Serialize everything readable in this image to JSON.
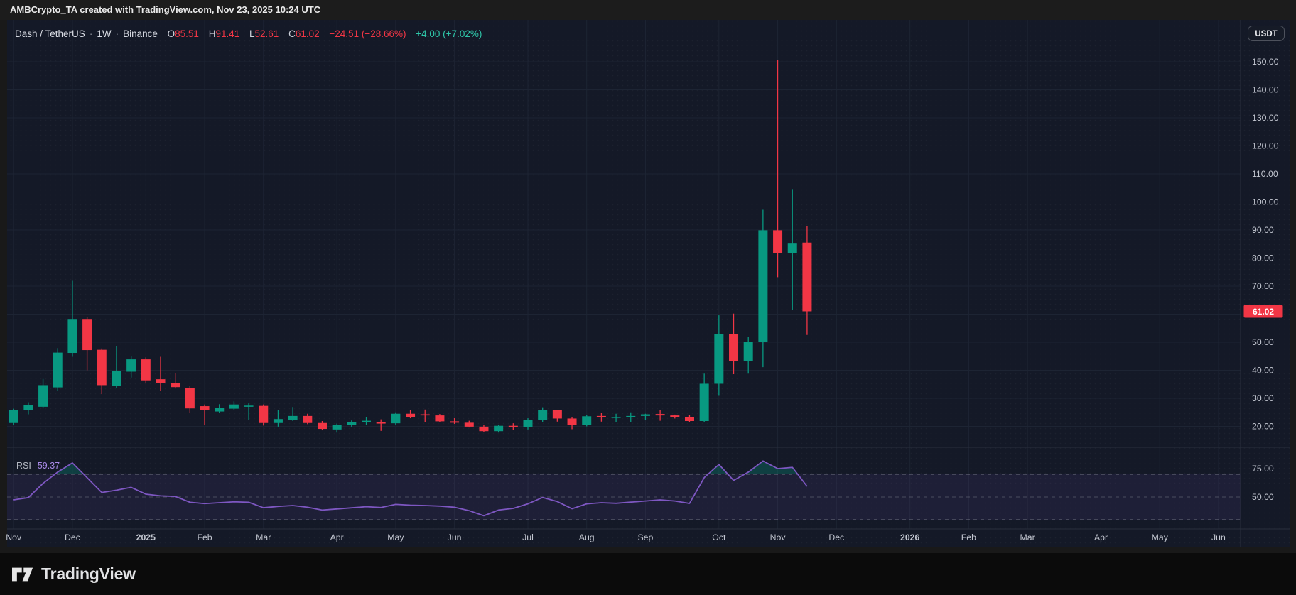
{
  "top_bar": {
    "text": "AMBCrypto_TA created with TradingView.com, Nov 23, 2025 10:24 UTC"
  },
  "legend": {
    "symbol": "Dash / TetherUS",
    "separator": "·",
    "interval": "1W",
    "exchange": "Binance",
    "o_label": "O",
    "o_value": "85.51",
    "h_label": "H",
    "h_value": "91.41",
    "l_label": "L",
    "l_value": "52.61",
    "c_label": "C",
    "c_value": "61.02",
    "change": "−24.51 (−28.66%)",
    "change_secondary": "+4.00 (+7.02%)"
  },
  "axis_button": {
    "label": "USDT"
  },
  "rsi_panel": {
    "label": "RSI",
    "value": "59.37"
  },
  "footer": {
    "brand": "TradingView"
  },
  "colors": {
    "up": "#089981",
    "down": "#f23645",
    "rsi_line": "#7e57c2",
    "rsi_band_fill": "rgba(126,87,194,0.10)",
    "rsi_overbought_fill": "rgba(8,153,129,0.30)",
    "chart_bg": "#141927",
    "grid": "#1d2433",
    "separator": "#2a2f3d",
    "axis_text": "#c3c7d1",
    "dashed_band": "rgba(190,193,200,0.50)",
    "dashed_mid": "rgba(190,193,200,0.28)",
    "badge_bg": "#f23645",
    "badge_text": "#ffffff"
  },
  "chart_data": {
    "type": "candlestick+rsi",
    "title": "Dash / TetherUS · 1W · Binance",
    "interval": "weekly",
    "last_price": 61.02,
    "price_axis": {
      "tick_labels": [
        {
          "label": "150.00",
          "value": 150
        },
        {
          "label": "140.00",
          "value": 140
        },
        {
          "label": "130.00",
          "value": 130
        },
        {
          "label": "120.00",
          "value": 120
        },
        {
          "label": "110.00",
          "value": 110
        },
        {
          "label": "100.00",
          "value": 100
        },
        {
          "label": "90.00",
          "value": 90
        },
        {
          "label": "80.00",
          "value": 80
        },
        {
          "label": "70.00",
          "value": 70
        },
        {
          "label": "50.00",
          "value": 50
        },
        {
          "label": "40.00",
          "value": 40
        },
        {
          "label": "30.00",
          "value": 30
        },
        {
          "label": "20.00",
          "value": 20
        }
      ],
      "grid_values": [
        20,
        30,
        40,
        50,
        60,
        70,
        80,
        90,
        100,
        110,
        120,
        130,
        140,
        150
      ],
      "ylim": [
        13,
        165
      ],
      "price_badge": {
        "label": "61.02",
        "value": 61.02
      }
    },
    "time_axis": {
      "ticks": [
        {
          "label": "Nov",
          "week": 0,
          "bold": false
        },
        {
          "label": "Dec",
          "week": 4,
          "bold": false
        },
        {
          "label": "2025",
          "week": 9,
          "bold": true
        },
        {
          "label": "Feb",
          "week": 13,
          "bold": false
        },
        {
          "label": "Mar",
          "week": 17,
          "bold": false
        },
        {
          "label": "Apr",
          "week": 22,
          "bold": false
        },
        {
          "label": "May",
          "week": 26,
          "bold": false
        },
        {
          "label": "Jun",
          "week": 30,
          "bold": false
        },
        {
          "label": "Jul",
          "week": 35,
          "bold": false
        },
        {
          "label": "Aug",
          "week": 39,
          "bold": false
        },
        {
          "label": "Sep",
          "week": 43,
          "bold": false
        },
        {
          "label": "Oct",
          "week": 48,
          "bold": false
        },
        {
          "label": "Nov",
          "week": 52,
          "bold": false
        },
        {
          "label": "Dec",
          "week": 56,
          "bold": false
        },
        {
          "label": "2026",
          "week": 61,
          "bold": true
        },
        {
          "label": "Feb",
          "week": 65,
          "bold": false
        },
        {
          "label": "Mar",
          "week": 69,
          "bold": false
        },
        {
          "label": "Apr",
          "week": 74,
          "bold": false
        },
        {
          "label": "May",
          "week": 78,
          "bold": false
        },
        {
          "label": "Jun",
          "week": 82,
          "bold": false
        }
      ]
    },
    "candles_ohlc": [
      [
        21.2,
        26.3,
        20.4,
        25.7
      ],
      [
        25.7,
        28.6,
        24.3,
        27.6
      ],
      [
        27.0,
        36.9,
        26.4,
        34.7
      ],
      [
        33.9,
        47.9,
        32.6,
        46.3
      ],
      [
        46.2,
        71.9,
        44.8,
        58.3
      ],
      [
        58.3,
        59.0,
        40.0,
        47.2
      ],
      [
        47.3,
        47.8,
        31.5,
        34.7
      ],
      [
        34.5,
        48.5,
        33.8,
        39.7
      ],
      [
        39.5,
        44.9,
        37.4,
        43.9
      ],
      [
        43.9,
        44.6,
        35.4,
        36.4
      ],
      [
        36.8,
        44.8,
        32.7,
        35.5
      ],
      [
        35.4,
        39.1,
        33.5,
        34.0
      ],
      [
        33.6,
        34.5,
        24.7,
        26.4
      ],
      [
        27.2,
        27.8,
        20.6,
        25.8
      ],
      [
        25.3,
        27.9,
        24.8,
        26.7
      ],
      [
        26.3,
        28.9,
        25.9,
        27.8
      ],
      [
        27.1,
        28.2,
        22.3,
        27.4
      ],
      [
        27.3,
        27.8,
        20.3,
        21.2
      ],
      [
        21.2,
        25.9,
        19.9,
        22.6
      ],
      [
        22.4,
        26.9,
        21.9,
        23.7
      ],
      [
        23.7,
        24.5,
        20.8,
        21.2
      ],
      [
        21.2,
        21.9,
        18.6,
        19.1
      ],
      [
        18.9,
        21.0,
        17.8,
        20.5
      ],
      [
        20.5,
        22.1,
        19.8,
        21.5
      ],
      [
        21.5,
        23.3,
        20.4,
        22.0
      ],
      [
        21.4,
        22.5,
        18.4,
        21.1
      ],
      [
        21.1,
        25.0,
        20.6,
        24.5
      ],
      [
        24.5,
        25.8,
        22.9,
        23.3
      ],
      [
        24.3,
        26.0,
        21.6,
        23.9
      ],
      [
        23.9,
        24.4,
        21.4,
        21.8
      ],
      [
        21.8,
        22.9,
        20.9,
        21.3
      ],
      [
        21.3,
        22.0,
        19.6,
        19.9
      ],
      [
        19.9,
        20.6,
        17.9,
        18.3
      ],
      [
        18.3,
        20.5,
        17.8,
        20.2
      ],
      [
        20.2,
        21.1,
        18.7,
        19.7
      ],
      [
        19.7,
        22.9,
        18.9,
        22.4
      ],
      [
        22.4,
        26.8,
        21.4,
        25.7
      ],
      [
        25.7,
        25.9,
        21.7,
        22.8
      ],
      [
        22.8,
        23.3,
        19.0,
        20.4
      ],
      [
        20.4,
        24.0,
        20.0,
        23.6
      ],
      [
        23.7,
        24.7,
        21.7,
        23.3
      ],
      [
        23.1,
        24.5,
        21.4,
        23.4
      ],
      [
        23.4,
        25.0,
        21.6,
        23.7
      ],
      [
        23.7,
        24.5,
        22.3,
        24.3
      ],
      [
        24.4,
        25.8,
        22.0,
        23.9
      ],
      [
        23.9,
        24.2,
        22.8,
        23.4
      ],
      [
        23.4,
        24.0,
        21.4,
        21.9
      ],
      [
        21.9,
        38.8,
        21.5,
        35.2
      ],
      [
        35.2,
        59.6,
        30.9,
        52.9
      ],
      [
        52.9,
        60.2,
        38.6,
        43.4
      ],
      [
        43.4,
        51.9,
        38.8,
        50.1
      ],
      [
        50.1,
        97.2,
        41.1,
        89.9
      ],
      [
        89.9,
        150.5,
        73.2,
        81.8
      ],
      [
        81.8,
        104.6,
        61.4,
        85.4
      ],
      [
        85.51,
        91.41,
        52.61,
        61.02
      ]
    ],
    "rsi": {
      "values": [
        47.5,
        49.5,
        62,
        72,
        80,
        67,
        54,
        56,
        58.5,
        52.5,
        51,
        50.5,
        45.4,
        44.2,
        45,
        45.8,
        45.4,
        40.6,
        41.7,
        42.5,
        41,
        38.5,
        39.5,
        40.5,
        41.5,
        40.8,
        43.5,
        42.8,
        42.5,
        42,
        41,
        38,
        33.5,
        38.5,
        40,
        44,
        49.6,
        46,
        39.7,
        44,
        45,
        44.5,
        45.5,
        46.5,
        47.5,
        46.5,
        44.4,
        67.1,
        78.6,
        64.6,
        71.9,
        81.7,
        75,
        76.1,
        59.37
      ],
      "current": 59.37,
      "overbought": 70,
      "mid": 50,
      "oversold": 30,
      "tick_labels": [
        {
          "label": "75.00",
          "value": 75
        },
        {
          "label": "50.00",
          "value": 50
        }
      ]
    }
  }
}
